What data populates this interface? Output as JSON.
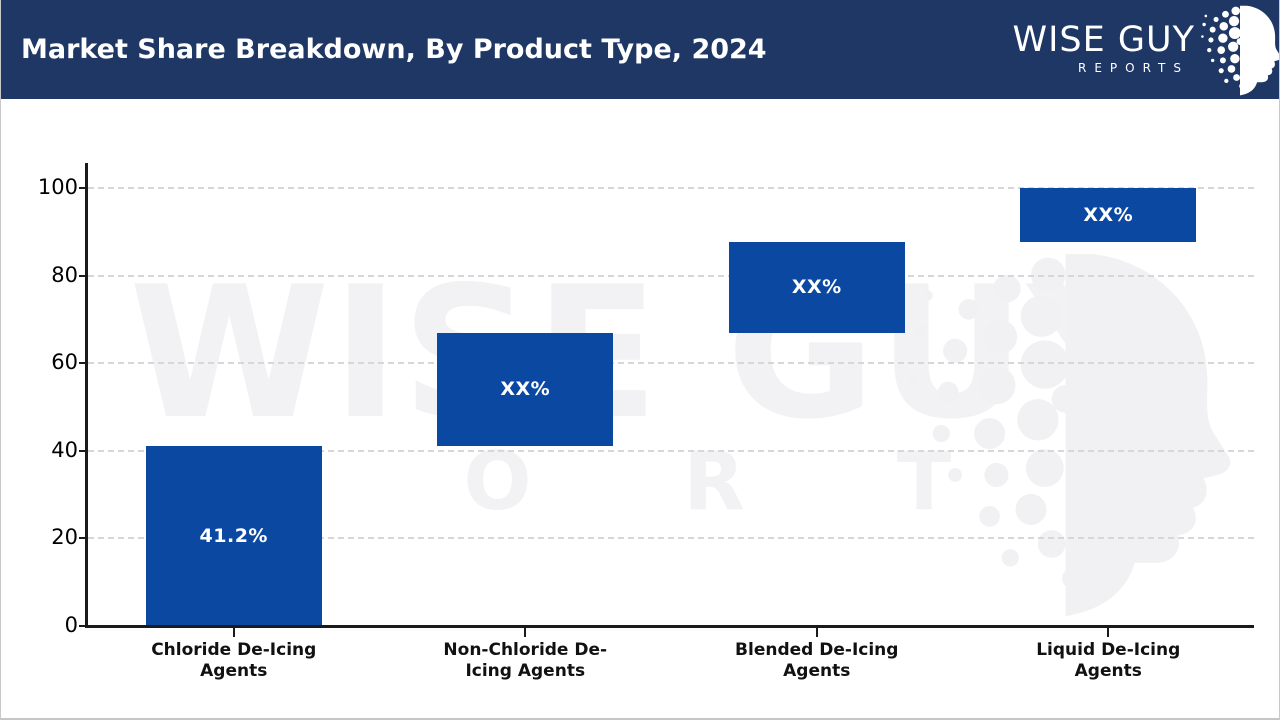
{
  "header": {
    "title": "Market Share Breakdown, By Product Type, 2024",
    "logo": {
      "name": "WISE GUY",
      "subname": "REPORTS"
    }
  },
  "watermark": {
    "line1": "WISE GUY",
    "line2": "P O R T S"
  },
  "colors": {
    "header_bg": "#1f3765",
    "bar": "#0b48a1",
    "bar_label": "#ffffff",
    "grid": "#d7d7d7",
    "axis": "#1a1a1a",
    "watermark": "#f2f2f4"
  },
  "chart_data": {
    "type": "bar",
    "subtype": "waterfall",
    "title": "Market Share Breakdown, By Product Type, 2024",
    "xlabel": "",
    "ylabel": "",
    "ylim": [
      0,
      100
    ],
    "yticks": [
      0,
      20,
      40,
      60,
      80,
      100
    ],
    "grid": "horizontal-dashed",
    "legend": null,
    "categories": [
      "Chloride De-Icing Agents",
      "Non-Chloride De-Icing Agents",
      "Blended De-Icing Agents",
      "Liquid De-Icing Agents"
    ],
    "categories_lines": [
      [
        "Chloride De-Icing",
        "Agents"
      ],
      [
        "Non-Chloride De-",
        "Icing Agents"
      ],
      [
        "Blended De-Icing",
        "Agents"
      ],
      [
        "Liquid De-Icing",
        "Agents"
      ]
    ],
    "segments": [
      {
        "category": "Chloride De-Icing Agents",
        "label": "41.2%",
        "start": 0,
        "end": 41.2
      },
      {
        "category": "Non-Chloride De-Icing Agents",
        "label": "XX%",
        "start": 41.2,
        "end": 67.0
      },
      {
        "category": "Blended De-Icing Agents",
        "label": "XX%",
        "start": 67.0,
        "end": 87.6
      },
      {
        "category": "Liquid De-Icing Agents",
        "label": "XX%",
        "start": 87.6,
        "end": 100
      }
    ]
  }
}
